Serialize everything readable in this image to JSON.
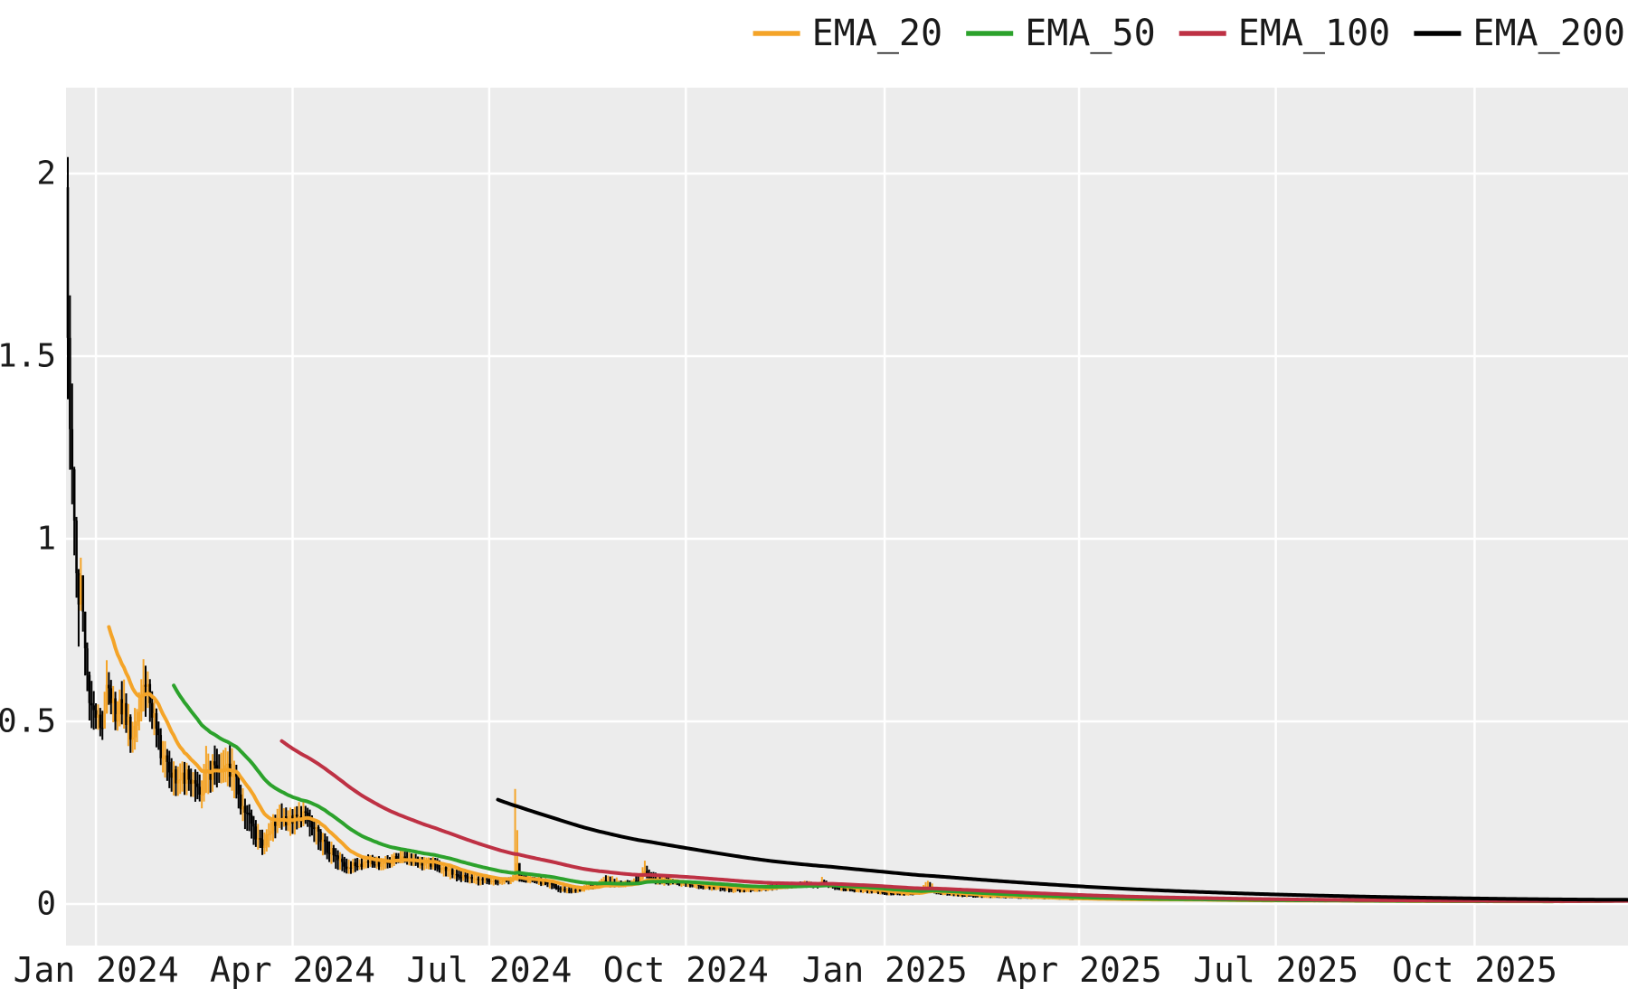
{
  "figure": {
    "background": "#ffffff",
    "plot_background": "#ececec",
    "grid_color": "#ffffff"
  },
  "legend": {
    "position": "top-right",
    "items": [
      {
        "label": "EMA_20",
        "color": "#F4A428"
      },
      {
        "label": "EMA_50",
        "color": "#2CA22C"
      },
      {
        "label": "EMA_100",
        "color": "#BE3144"
      },
      {
        "label": "EMA_200",
        "color": "#000000"
      }
    ]
  },
  "chart_data": {
    "type": "candlestick",
    "title": "",
    "xlabel": "",
    "ylabel": "",
    "grid": true,
    "legend_position": "top-right",
    "ylim": [
      -0.115,
      2.235
    ],
    "yticks": [
      0,
      0.5,
      1,
      1.5,
      2
    ],
    "ytick_labels": [
      "0",
      "0.5",
      "1",
      "1.5",
      "2"
    ],
    "xtick_labels": [
      "Jan 2024",
      "Apr 2024",
      "Jul 2024",
      "Oct 2024",
      "Jan 2025",
      "Apr 2025",
      "Jul 2025",
      "Oct 2025"
    ],
    "xtick_day_offsets": [
      13,
      104,
      195,
      286,
      378,
      468,
      559,
      651
    ],
    "start_label": "mid-Dec 2023",
    "total_days": 722,
    "candle_colors": {
      "up": "#F4A428",
      "down": "#000000"
    },
    "series": [
      {
        "name": "EMA_20",
        "period": 20,
        "color": "#F4A428"
      },
      {
        "name": "EMA_50",
        "period": 50,
        "color": "#2CA22C"
      },
      {
        "name": "EMA_100",
        "period": 100,
        "color": "#BE3144"
      },
      {
        "name": "EMA_200",
        "period": 200,
        "color": "#000000"
      }
    ],
    "price_keypoints_format": [
      "day_offset",
      "close",
      "high",
      "low"
    ],
    "price_keypoints": [
      [
        0,
        1.55,
        2.11,
        1.3
      ],
      [
        1,
        1.3,
        1.75,
        1.15
      ],
      [
        3,
        1.05,
        1.2,
        0.95
      ],
      [
        5,
        0.82,
        0.92,
        0.7
      ],
      [
        6,
        0.9,
        0.96,
        0.8
      ],
      [
        8,
        0.7,
        0.8,
        0.62
      ],
      [
        10,
        0.55,
        0.64,
        0.48
      ],
      [
        13,
        0.51,
        0.56,
        0.46
      ],
      [
        16,
        0.48,
        0.53,
        0.44
      ],
      [
        18,
        0.6,
        0.67,
        0.52
      ],
      [
        20,
        0.55,
        0.62,
        0.5
      ],
      [
        23,
        0.52,
        0.58,
        0.46
      ],
      [
        26,
        0.55,
        0.63,
        0.48
      ],
      [
        29,
        0.45,
        0.52,
        0.4
      ],
      [
        32,
        0.5,
        0.56,
        0.43
      ],
      [
        35,
        0.6,
        0.68,
        0.52
      ],
      [
        38,
        0.55,
        0.62,
        0.49
      ],
      [
        41,
        0.48,
        0.54,
        0.42
      ],
      [
        44,
        0.4,
        0.46,
        0.34
      ],
      [
        47,
        0.36,
        0.42,
        0.3
      ],
      [
        50,
        0.33,
        0.38,
        0.28
      ],
      [
        53,
        0.36,
        0.41,
        0.3
      ],
      [
        56,
        0.34,
        0.38,
        0.29
      ],
      [
        59,
        0.33,
        0.37,
        0.28
      ],
      [
        62,
        0.3,
        0.35,
        0.26
      ],
      [
        64,
        0.36,
        0.44,
        0.3
      ],
      [
        66,
        0.34,
        0.4,
        0.29
      ],
      [
        68,
        0.38,
        0.44,
        0.32
      ],
      [
        70,
        0.36,
        0.42,
        0.31
      ],
      [
        73,
        0.38,
        0.43,
        0.33
      ],
      [
        76,
        0.35,
        0.44,
        0.3
      ],
      [
        79,
        0.3,
        0.36,
        0.25
      ],
      [
        82,
        0.25,
        0.3,
        0.2
      ],
      [
        85,
        0.22,
        0.26,
        0.17
      ],
      [
        88,
        0.18,
        0.22,
        0.14
      ],
      [
        91,
        0.16,
        0.2,
        0.13
      ],
      [
        94,
        0.2,
        0.24,
        0.16
      ],
      [
        97,
        0.23,
        0.27,
        0.19
      ],
      [
        100,
        0.24,
        0.28,
        0.2
      ],
      [
        104,
        0.22,
        0.26,
        0.18
      ],
      [
        107,
        0.24,
        0.28,
        0.2
      ],
      [
        110,
        0.25,
        0.28,
        0.21
      ],
      [
        113,
        0.21,
        0.25,
        0.17
      ],
      [
        117,
        0.17,
        0.21,
        0.13
      ],
      [
        121,
        0.14,
        0.18,
        0.11
      ],
      [
        125,
        0.12,
        0.15,
        0.09
      ],
      [
        130,
        0.1,
        0.13,
        0.08
      ],
      [
        135,
        0.11,
        0.13,
        0.09
      ],
      [
        140,
        0.12,
        0.14,
        0.1
      ],
      [
        145,
        0.11,
        0.13,
        0.09
      ],
      [
        150,
        0.12,
        0.14,
        0.1
      ],
      [
        155,
        0.13,
        0.15,
        0.11
      ],
      [
        160,
        0.12,
        0.14,
        0.1
      ],
      [
        165,
        0.11,
        0.13,
        0.09
      ],
      [
        170,
        0.11,
        0.13,
        0.09
      ],
      [
        175,
        0.09,
        0.11,
        0.07
      ],
      [
        180,
        0.08,
        0.1,
        0.06
      ],
      [
        185,
        0.07,
        0.09,
        0.055
      ],
      [
        190,
        0.065,
        0.08,
        0.05
      ],
      [
        195,
        0.06,
        0.075,
        0.05
      ],
      [
        200,
        0.06,
        0.07,
        0.05
      ],
      [
        206,
        0.07,
        0.08,
        0.055
      ],
      [
        207,
        0.08,
        0.36,
        0.065
      ],
      [
        209,
        0.07,
        0.09,
        0.06
      ],
      [
        215,
        0.065,
        0.08,
        0.055
      ],
      [
        222,
        0.055,
        0.07,
        0.045
      ],
      [
        228,
        0.04,
        0.05,
        0.03
      ],
      [
        235,
        0.035,
        0.045,
        0.028
      ],
      [
        240,
        0.045,
        0.055,
        0.035
      ],
      [
        245,
        0.05,
        0.06,
        0.04
      ],
      [
        248,
        0.065,
        0.08,
        0.05
      ],
      [
        250,
        0.055,
        0.085,
        0.045
      ],
      [
        255,
        0.055,
        0.07,
        0.045
      ],
      [
        260,
        0.055,
        0.065,
        0.045
      ],
      [
        265,
        0.07,
        0.09,
        0.055
      ],
      [
        267,
        0.09,
        0.12,
        0.07
      ],
      [
        270,
        0.07,
        0.09,
        0.055
      ],
      [
        275,
        0.065,
        0.08,
        0.05
      ],
      [
        280,
        0.06,
        0.07,
        0.05
      ],
      [
        286,
        0.055,
        0.065,
        0.045
      ],
      [
        292,
        0.05,
        0.06,
        0.04
      ],
      [
        300,
        0.045,
        0.055,
        0.035
      ],
      [
        308,
        0.04,
        0.05,
        0.03
      ],
      [
        316,
        0.04,
        0.048,
        0.032
      ],
      [
        324,
        0.045,
        0.055,
        0.035
      ],
      [
        332,
        0.05,
        0.06,
        0.04
      ],
      [
        340,
        0.055,
        0.065,
        0.045
      ],
      [
        347,
        0.05,
        0.06,
        0.042
      ],
      [
        349,
        0.062,
        0.075,
        0.05
      ],
      [
        352,
        0.05,
        0.06,
        0.042
      ],
      [
        355,
        0.045,
        0.055,
        0.038
      ],
      [
        362,
        0.04,
        0.05,
        0.032
      ],
      [
        370,
        0.035,
        0.045,
        0.028
      ],
      [
        378,
        0.03,
        0.038,
        0.024
      ],
      [
        386,
        0.028,
        0.035,
        0.022
      ],
      [
        394,
        0.03,
        0.04,
        0.024
      ],
      [
        398,
        0.045,
        0.074,
        0.035
      ],
      [
        402,
        0.032,
        0.04,
        0.026
      ],
      [
        410,
        0.026,
        0.032,
        0.02
      ],
      [
        420,
        0.022,
        0.028,
        0.017
      ],
      [
        430,
        0.02,
        0.025,
        0.015
      ],
      [
        440,
        0.018,
        0.022,
        0.014
      ],
      [
        455,
        0.016,
        0.02,
        0.012
      ],
      [
        468,
        0.014,
        0.018,
        0.011
      ],
      [
        480,
        0.013,
        0.016,
        0.01
      ],
      [
        500,
        0.012,
        0.015,
        0.009
      ],
      [
        520,
        0.011,
        0.014,
        0.008
      ],
      [
        540,
        0.01,
        0.013,
        0.008
      ],
      [
        559,
        0.009,
        0.012,
        0.007
      ],
      [
        580,
        0.009,
        0.011,
        0.007
      ],
      [
        600,
        0.008,
        0.01,
        0.006
      ],
      [
        620,
        0.008,
        0.01,
        0.006
      ],
      [
        651,
        0.007,
        0.009,
        0.005
      ],
      [
        680,
        0.007,
        0.009,
        0.005
      ],
      [
        700,
        0.008,
        0.01,
        0.006
      ],
      [
        722,
        0.01,
        0.014,
        0.007
      ]
    ]
  }
}
